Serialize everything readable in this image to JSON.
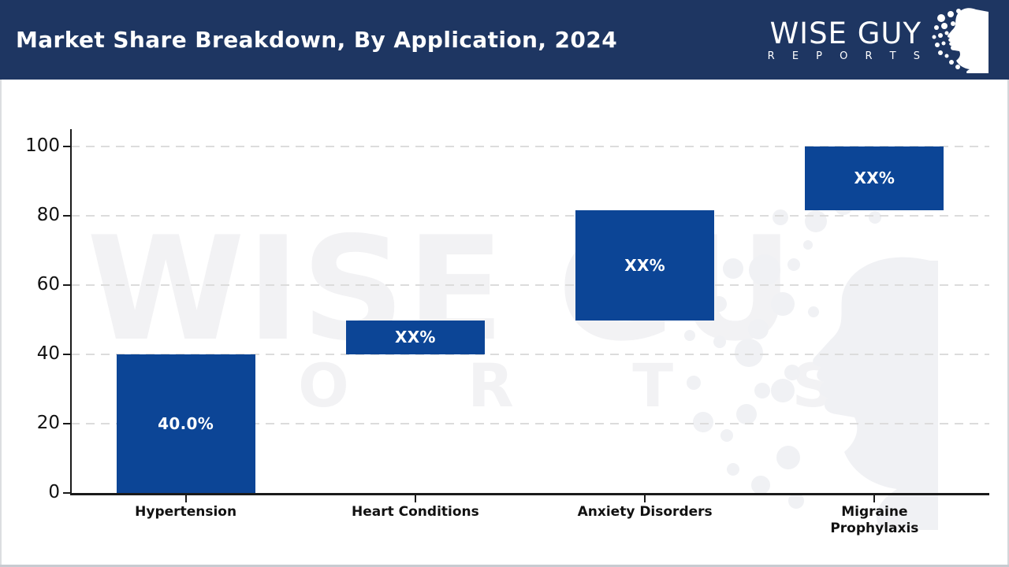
{
  "header": {
    "title": "Market Share Breakdown, By Application, 2024",
    "logo_main": "WISE GUY",
    "logo_sub": "R E P O R T S"
  },
  "watermark": {
    "line1": "WISE GU",
    "line2": "P O R T S"
  },
  "chart_data": {
    "type": "bar",
    "subtype": "waterfall",
    "title": "Market Share Breakdown, By Application, 2024",
    "categories": [
      "Hypertension",
      "Heart Conditions",
      "Anxiety Disorders",
      "Migraine Prophylaxis"
    ],
    "segments": [
      {
        "category": "Hypertension",
        "start": 0,
        "end": 40.0,
        "value": 40.0,
        "label": "40.0%"
      },
      {
        "category": "Heart Conditions",
        "start": 40.0,
        "end": 49.8,
        "value": 9.8,
        "label": "XX%"
      },
      {
        "category": "Anxiety Disorders",
        "start": 49.8,
        "end": 81.6,
        "value": 31.8,
        "label": "XX%"
      },
      {
        "category": "Migraine Prophylaxis",
        "start": 81.6,
        "end": 100.0,
        "value": 18.4,
        "label": "XX%"
      }
    ],
    "xlabel": "",
    "ylabel": "",
    "ylim": [
      0,
      105
    ],
    "yticks": [
      0,
      20,
      40,
      60,
      80,
      100
    ],
    "grid": "horizontal-dashed",
    "legend": "none"
  },
  "colors": {
    "header_bg": "#1e3662",
    "bar": "#0c4596",
    "bar_label": "#ffffff",
    "grid": "#dcdcdc",
    "axis": "#1a1a1a",
    "watermark": "#f2f2f4"
  }
}
